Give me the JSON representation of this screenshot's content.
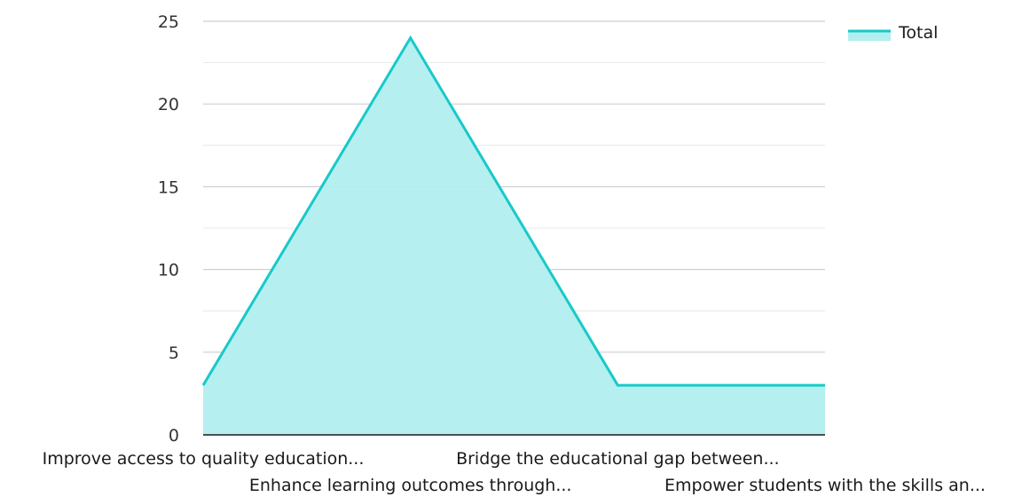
{
  "chart_data": {
    "type": "area",
    "categories": [
      "Improve access to quality education...",
      "Enhance learning outcomes through...",
      "Bridge the educational gap between...",
      "Empower students with the skills an..."
    ],
    "series": [
      {
        "name": "Total",
        "values": [
          3,
          24,
          3,
          3
        ]
      }
    ],
    "y_ticks": [
      "0",
      "5",
      "10",
      "15",
      "20",
      "25"
    ],
    "ylim": [
      0,
      25
    ],
    "grid": true,
    "legend_position": "top-right",
    "colors": {
      "line": "#18c9c9",
      "fill": "#b2eeee",
      "grid": "#cfcfcf",
      "axis": "#1a1a1a"
    }
  }
}
